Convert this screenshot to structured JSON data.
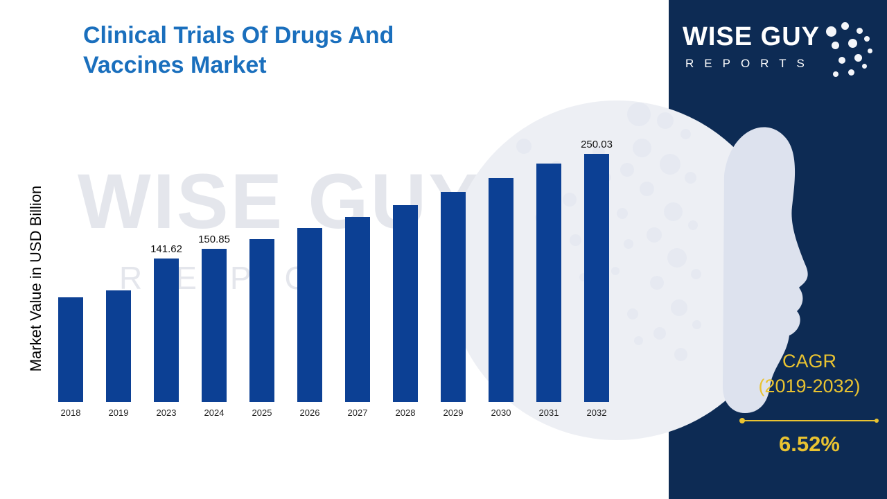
{
  "page": {
    "title_line1": "Clinical Trials Of Drugs And",
    "title_line2": "Vaccines Market"
  },
  "watermark": {
    "word1": "WISE GUY",
    "word2": "REPORTS"
  },
  "brand": {
    "name_line": "WISE GUY",
    "sub_line": "REPORTS"
  },
  "cagr": {
    "label": "CAGR",
    "range": "(2019-2032)",
    "value": "6.52%"
  },
  "colors": {
    "title_blue": "#1a6fbd",
    "bar_blue": "#0c4094",
    "panel_navy": "#0d2b54",
    "accent_gold": "#e9c331",
    "watermark_gray": "#e4e6ec",
    "circle_gray": "#edeff4"
  },
  "chart_data": {
    "type": "bar",
    "title": "Clinical Trials Of Drugs And Vaccines Market",
    "ylabel": "Market Value in USD Billion",
    "xlabel": "",
    "unit": "USD Billion",
    "categories": [
      "2018",
      "2019",
      "2023",
      "2024",
      "2025",
      "2026",
      "2027",
      "2028",
      "2029",
      "2030",
      "2031",
      "2032"
    ],
    "values": [
      103.3,
      110.0,
      141.62,
      150.85,
      160.7,
      171.2,
      182.3,
      194.2,
      206.9,
      220.4,
      234.7,
      250.03
    ],
    "data_labels": [
      "",
      "",
      "141.62",
      "150.85",
      "",
      "",
      "",
      "",
      "",
      "",
      "",
      "250.03"
    ],
    "bar_color": "#0c4094",
    "ylim": [
      0,
      260
    ],
    "grid": false,
    "legend": false,
    "cagr_percent": "6.52%",
    "cagr_period": "(2019-2032)"
  }
}
